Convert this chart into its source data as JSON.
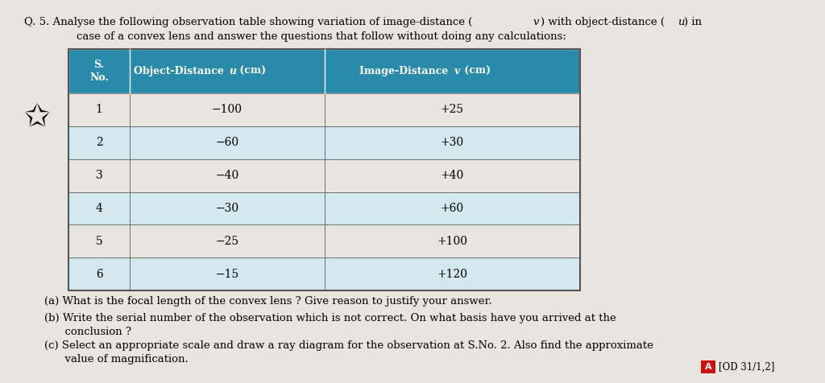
{
  "bg_color": "#c8c0b8",
  "paper_color": "#e8e4de",
  "header_bg": "#2a8aaa",
  "row_bg_alt": "#d4e8f0",
  "row_bg_white": "#e8e4de",
  "border_color": "#555555",
  "header_text_color": "#ffffff",
  "rows": [
    [
      "1",
      "−100",
      "+25"
    ],
    [
      "2",
      "−60",
      "+30"
    ],
    [
      "3",
      "−40",
      "+40"
    ],
    [
      "4",
      "−30",
      "+60"
    ],
    [
      "5",
      "−25",
      "+100"
    ],
    [
      "6",
      "−15",
      "+120"
    ]
  ],
  "answer_bg": "#cc1111",
  "answer_code": "[OD 31/1,2]",
  "subq_a": "(a) What is the focal length of the convex lens ? Give reason to justify your answer.",
  "subq_b1": "(b) Write the serial number of the observation which is not correct. On what basis have you arrived at the",
  "subq_b2": "      conclusion ?",
  "subq_c1": "(c) Select an appropriate scale and draw a ray diagram for the observation at S.No. 2. Also find the approximate",
  "subq_c2": "      value of magnification."
}
